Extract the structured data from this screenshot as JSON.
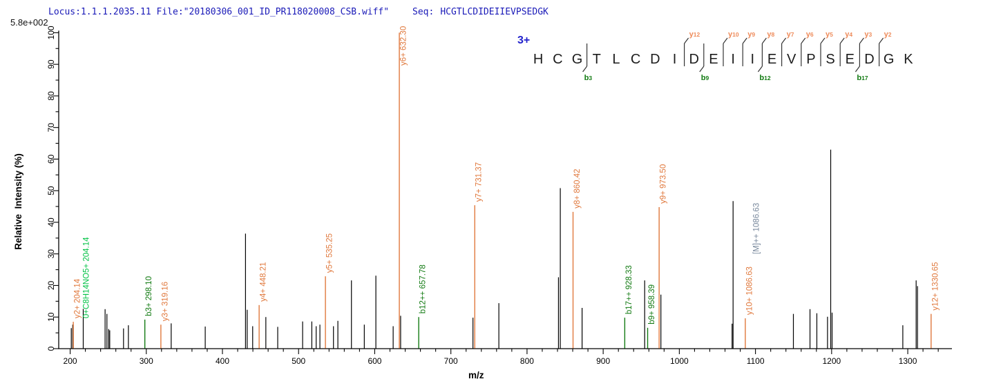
{
  "header": {
    "locus_file": "Locus:1.1.1.2035.11 File:\"20180306_001_ID_PR118020008_CSB.wiff\"",
    "seq_label": "Seq:",
    "sequence": "HCGTLCDIDEIIEVPSEDGK"
  },
  "colors": {
    "black": "#000000",
    "orange": "#e0783c",
    "green": "#117a11",
    "green2": "#00c244",
    "gray": "#77879b",
    "navy": "#1a1ab8",
    "ion_y": "#ee8b5a",
    "ion_b": "#117a11",
    "marker": "#333333"
  },
  "chart_data": {
    "type": "bar",
    "title": "",
    "xlabel": "m/z",
    "ylabel": "Relative  Intensity (%)",
    "base_peak_intensity": "5.8e+002",
    "xlim": [
      185,
      1358
    ],
    "ylim": [
      0,
      100
    ],
    "x_major_tick_step": 100,
    "x_minor_tick_step": 20,
    "y_major_tick_step": 10,
    "y_minor_tick_step": 5,
    "grid": false,
    "legend": false,
    "peaks": [
      {
        "mz": 201.5,
        "intensity": 6.5,
        "color": "black"
      },
      {
        "mz": 203.4,
        "intensity": 7.6,
        "color": "black"
      },
      {
        "mz": 204.14,
        "intensity": 8.5,
        "color": "orange",
        "labels": [
          {
            "text": "y2+ 204.14",
            "color": "orange"
          },
          {
            "text": "0+C8H14NO5+ 204.14",
            "color": "green2",
            "placement": "beside"
          }
        ]
      },
      {
        "mz": 217.2,
        "intensity": 12.6,
        "color": "black"
      },
      {
        "mz": 245.9,
        "intensity": 12.5,
        "color": "black"
      },
      {
        "mz": 248.3,
        "intensity": 11.0,
        "color": "black"
      },
      {
        "mz": 250.6,
        "intensity": 6.2,
        "color": "black"
      },
      {
        "mz": 252.0,
        "intensity": 5.8,
        "color": "black"
      },
      {
        "mz": 270.1,
        "intensity": 6.4,
        "color": "black"
      },
      {
        "mz": 276.5,
        "intensity": 7.4,
        "color": "black"
      },
      {
        "mz": 298.1,
        "intensity": 9.2,
        "color": "green",
        "labels": [
          {
            "text": "b3+ 298.10",
            "color": "green"
          }
        ]
      },
      {
        "mz": 319.16,
        "intensity": 7.6,
        "color": "orange",
        "labels": [
          {
            "text": "y3+ 319.16",
            "color": "orange"
          }
        ]
      },
      {
        "mz": 332.7,
        "intensity": 8.0,
        "color": "black"
      },
      {
        "mz": 377.4,
        "intensity": 7.0,
        "color": "black"
      },
      {
        "mz": 430.3,
        "intensity": 36.4,
        "color": "black"
      },
      {
        "mz": 432.5,
        "intensity": 12.3,
        "color": "black"
      },
      {
        "mz": 439.7,
        "intensity": 7.1,
        "color": "black"
      },
      {
        "mz": 448.21,
        "intensity": 13.8,
        "color": "orange",
        "labels": [
          {
            "text": "y4+ 448.21",
            "color": "orange"
          }
        ]
      },
      {
        "mz": 457.0,
        "intensity": 10.0,
        "color": "black"
      },
      {
        "mz": 472.6,
        "intensity": 6.9,
        "color": "black"
      },
      {
        "mz": 505.3,
        "intensity": 8.6,
        "color": "black"
      },
      {
        "mz": 517.4,
        "intensity": 8.6,
        "color": "black"
      },
      {
        "mz": 523.1,
        "intensity": 7.1,
        "color": "black"
      },
      {
        "mz": 528.0,
        "intensity": 7.6,
        "color": "black"
      },
      {
        "mz": 535.25,
        "intensity": 22.9,
        "color": "orange",
        "labels": [
          {
            "text": "y5+ 535.25",
            "color": "orange"
          }
        ]
      },
      {
        "mz": 545.8,
        "intensity": 7.1,
        "color": "black"
      },
      {
        "mz": 551.6,
        "intensity": 8.8,
        "color": "black"
      },
      {
        "mz": 569.4,
        "intensity": 21.6,
        "color": "black"
      },
      {
        "mz": 586.3,
        "intensity": 7.6,
        "color": "black"
      },
      {
        "mz": 601.5,
        "intensity": 23.1,
        "color": "black"
      },
      {
        "mz": 624.2,
        "intensity": 7.1,
        "color": "black"
      },
      {
        "mz": 632.3,
        "intensity": 100,
        "color": "orange",
        "labels": [
          {
            "text": "y6+ 632.30",
            "color": "orange"
          }
        ]
      },
      {
        "mz": 634.0,
        "intensity": 10.4,
        "color": "black"
      },
      {
        "mz": 657.78,
        "intensity": 10.0,
        "color": "green",
        "labels": [
          {
            "text": "b12++ 657.78",
            "color": "green"
          }
        ]
      },
      {
        "mz": 729.0,
        "intensity": 9.8,
        "color": "black"
      },
      {
        "mz": 731.37,
        "intensity": 45.4,
        "color": "orange",
        "labels": [
          {
            "text": "y7+ 731.37",
            "color": "orange"
          }
        ]
      },
      {
        "mz": 763.0,
        "intensity": 14.4,
        "color": "black"
      },
      {
        "mz": 841.3,
        "intensity": 22.6,
        "color": "black"
      },
      {
        "mz": 843.7,
        "intensity": 50.8,
        "color": "black"
      },
      {
        "mz": 860.42,
        "intensity": 43.3,
        "color": "orange",
        "labels": [
          {
            "text": "y8+ 860.42",
            "color": "orange"
          }
        ]
      },
      {
        "mz": 872.3,
        "intensity": 12.9,
        "color": "black"
      },
      {
        "mz": 928.33,
        "intensity": 9.8,
        "color": "green",
        "labels": [
          {
            "text": "b17++ 928.33",
            "color": "green"
          }
        ]
      },
      {
        "mz": 954.5,
        "intensity": 21.6,
        "color": "black"
      },
      {
        "mz": 958.39,
        "intensity": 6.6,
        "color": "green",
        "labels": [
          {
            "text": "b9+ 958.39",
            "color": "green"
          }
        ]
      },
      {
        "mz": 973.5,
        "intensity": 44.8,
        "color": "orange",
        "labels": [
          {
            "text": "y9+ 973.50",
            "color": "orange"
          }
        ]
      },
      {
        "mz": 975.8,
        "intensity": 17.1,
        "color": "black"
      },
      {
        "mz": 1069.3,
        "intensity": 7.9,
        "color": "black"
      },
      {
        "mz": 1070.6,
        "intensity": 46.7,
        "color": "black"
      },
      {
        "mz": 1086.63,
        "intensity": 9.6,
        "color": "orange",
        "labels": [
          {
            "text": "y10+ 1086.63",
            "color": "orange"
          },
          {
            "text": "[M]++ 1086.63",
            "color": "gray",
            "placement": "above"
          }
        ]
      },
      {
        "mz": 1149.8,
        "intensity": 11.0,
        "color": "black"
      },
      {
        "mz": 1171.6,
        "intensity": 12.5,
        "color": "black"
      },
      {
        "mz": 1180.6,
        "intensity": 11.2,
        "color": "black"
      },
      {
        "mz": 1194.6,
        "intensity": 10.1,
        "color": "black"
      },
      {
        "mz": 1198.8,
        "intensity": 63.0,
        "color": "black"
      },
      {
        "mz": 1200.6,
        "intensity": 11.4,
        "color": "black"
      },
      {
        "mz": 1293.5,
        "intensity": 7.4,
        "color": "black"
      },
      {
        "mz": 1311.0,
        "intensity": 21.6,
        "color": "black"
      },
      {
        "mz": 1312.8,
        "intensity": 19.8,
        "color": "black"
      },
      {
        "mz": 1330.65,
        "intensity": 11.0,
        "color": "orange",
        "labels": [
          {
            "text": "y12+ 1330.65",
            "color": "orange"
          }
        ]
      }
    ]
  },
  "fragment_panel": {
    "charge": "3+",
    "residues": [
      "H",
      "C",
      "G",
      "T",
      "L",
      "C",
      "D",
      "I",
      "D",
      "E",
      "I",
      "I",
      "E",
      "V",
      "P",
      "S",
      "E",
      "D",
      "G",
      "K"
    ],
    "y_ions": [
      {
        "label": "y12",
        "after": 8
      },
      {
        "label": "y10",
        "after": 10
      },
      {
        "label": "y9",
        "after": 11
      },
      {
        "label": "y8",
        "after": 12
      },
      {
        "label": "y7",
        "after": 13
      },
      {
        "label": "y6",
        "after": 14
      },
      {
        "label": "y5",
        "after": 15
      },
      {
        "label": "y4",
        "after": 16
      },
      {
        "label": "y3",
        "after": 17
      },
      {
        "label": "y2",
        "after": 18
      }
    ],
    "b_ions": [
      {
        "label": "b3",
        "after": 3
      },
      {
        "label": "b9",
        "after": 9
      },
      {
        "label": "b12",
        "after": 12
      },
      {
        "label": "b17",
        "after": 17
      }
    ]
  }
}
